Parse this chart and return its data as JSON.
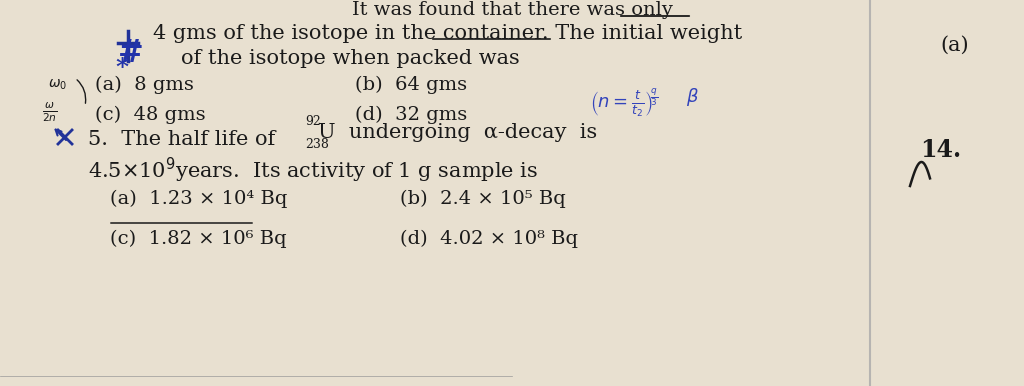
{
  "background_color": "#e8e0d0",
  "text_color": "#1a1a1a",
  "annotation_color": "#3344bb",
  "marker_color": "#1a1a1a",
  "top_line": "It was found that there was only",
  "line1": "4 gms of the isotope in the container. The initial weight",
  "line2": "of the isotope when packed was",
  "q4_opts_a": "(a)  8 gms",
  "q4_opts_b": "(b)  64 gms",
  "q4_opts_c": "(c)  48 gms",
  "q4_opts_d": "(d)  32 gms",
  "q5_line1": "5.  The half life of ",
  "q5_U": "238",
  "q5_U2": "92",
  "q5_line1b": "U  undergoing  α-decay  is",
  "q5_line2": "4.5×10⁹years.  Its activity of 1 g sample is",
  "q5_opts_a": "(a)  1.23 × 10⁴ Bq",
  "q5_opts_b": "(b)  2.4 × 10⁵ Bq",
  "q5_opts_c": "(c)  1.82 × 10⁶ Bq",
  "q5_opts_d": "(d)  4.02 × 10⁸ Bq",
  "right_a": "(a)",
  "right_14": "14.",
  "font_size_main": 15,
  "font_size_opts": 14,
  "font_size_annotation": 12,
  "font_size_margin": 10
}
